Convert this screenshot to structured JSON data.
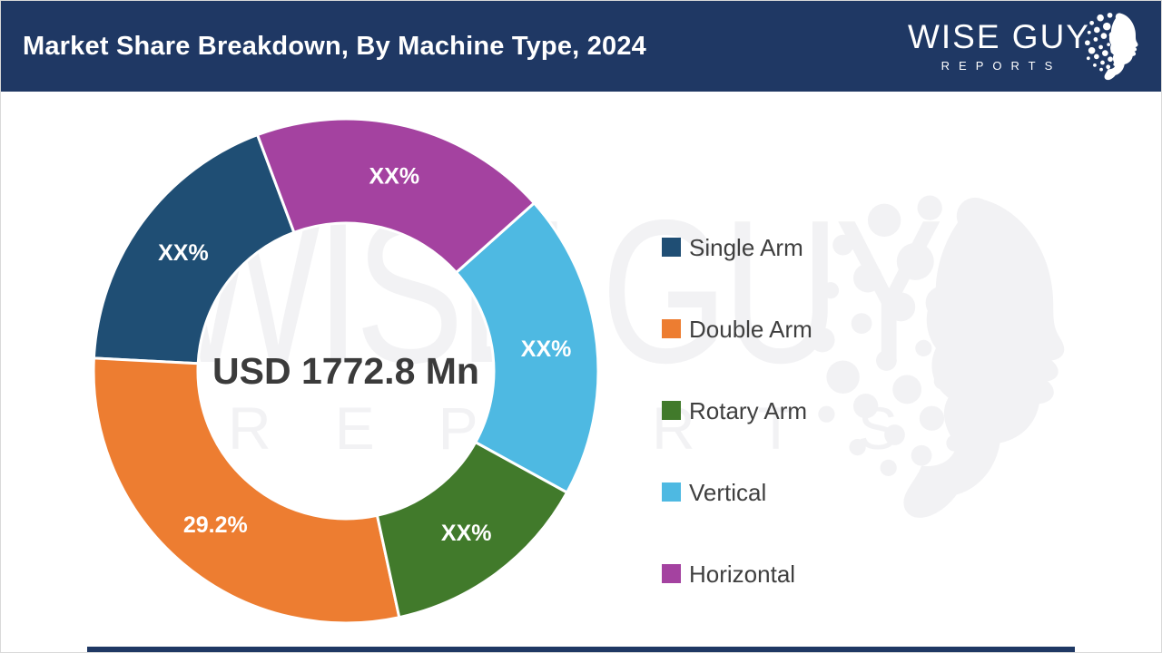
{
  "header": {
    "title": "Market Share Breakdown, By Machine Type, 2024",
    "logo": {
      "line1": "WISE GUY",
      "line2": "REPORTS"
    }
  },
  "watermark": {
    "line1": "WISE GUY",
    "line2": "REPORTS"
  },
  "chart_data": {
    "type": "pie",
    "subtype": "donut",
    "title": "Market Share Breakdown, By Machine Type, 2024",
    "center_label": "USD 1772.8 Mn",
    "start_angle_deg": 110.5,
    "direction": "counterclockwise",
    "inner_radius_ratio": 0.586,
    "legend_position": "right",
    "segments": [
      {
        "name": "Single Arm",
        "value": 18.5,
        "display_label": "XX%",
        "color": "#1F4E74"
      },
      {
        "name": "Double Arm",
        "value": 29.2,
        "display_label": "29.2%",
        "color": "#ED7D31"
      },
      {
        "name": "Rotary Arm",
        "value": 13.6,
        "display_label": "XX%",
        "color": "#417A2B"
      },
      {
        "name": "Vertical",
        "value": 19.6,
        "display_label": "XX%",
        "color": "#4EB9E2"
      },
      {
        "name": "Horizontal",
        "value": 19.1,
        "display_label": "XX%",
        "color": "#A442A0"
      }
    ]
  },
  "colors": {
    "header_bg": "#1F3864",
    "footer_bar": "#1F3864",
    "center_text": "#3B3B3B",
    "slice_label_text": "#FFFFFF",
    "legend_text": "#3F3F3F",
    "watermark": "#F2F2F4"
  }
}
